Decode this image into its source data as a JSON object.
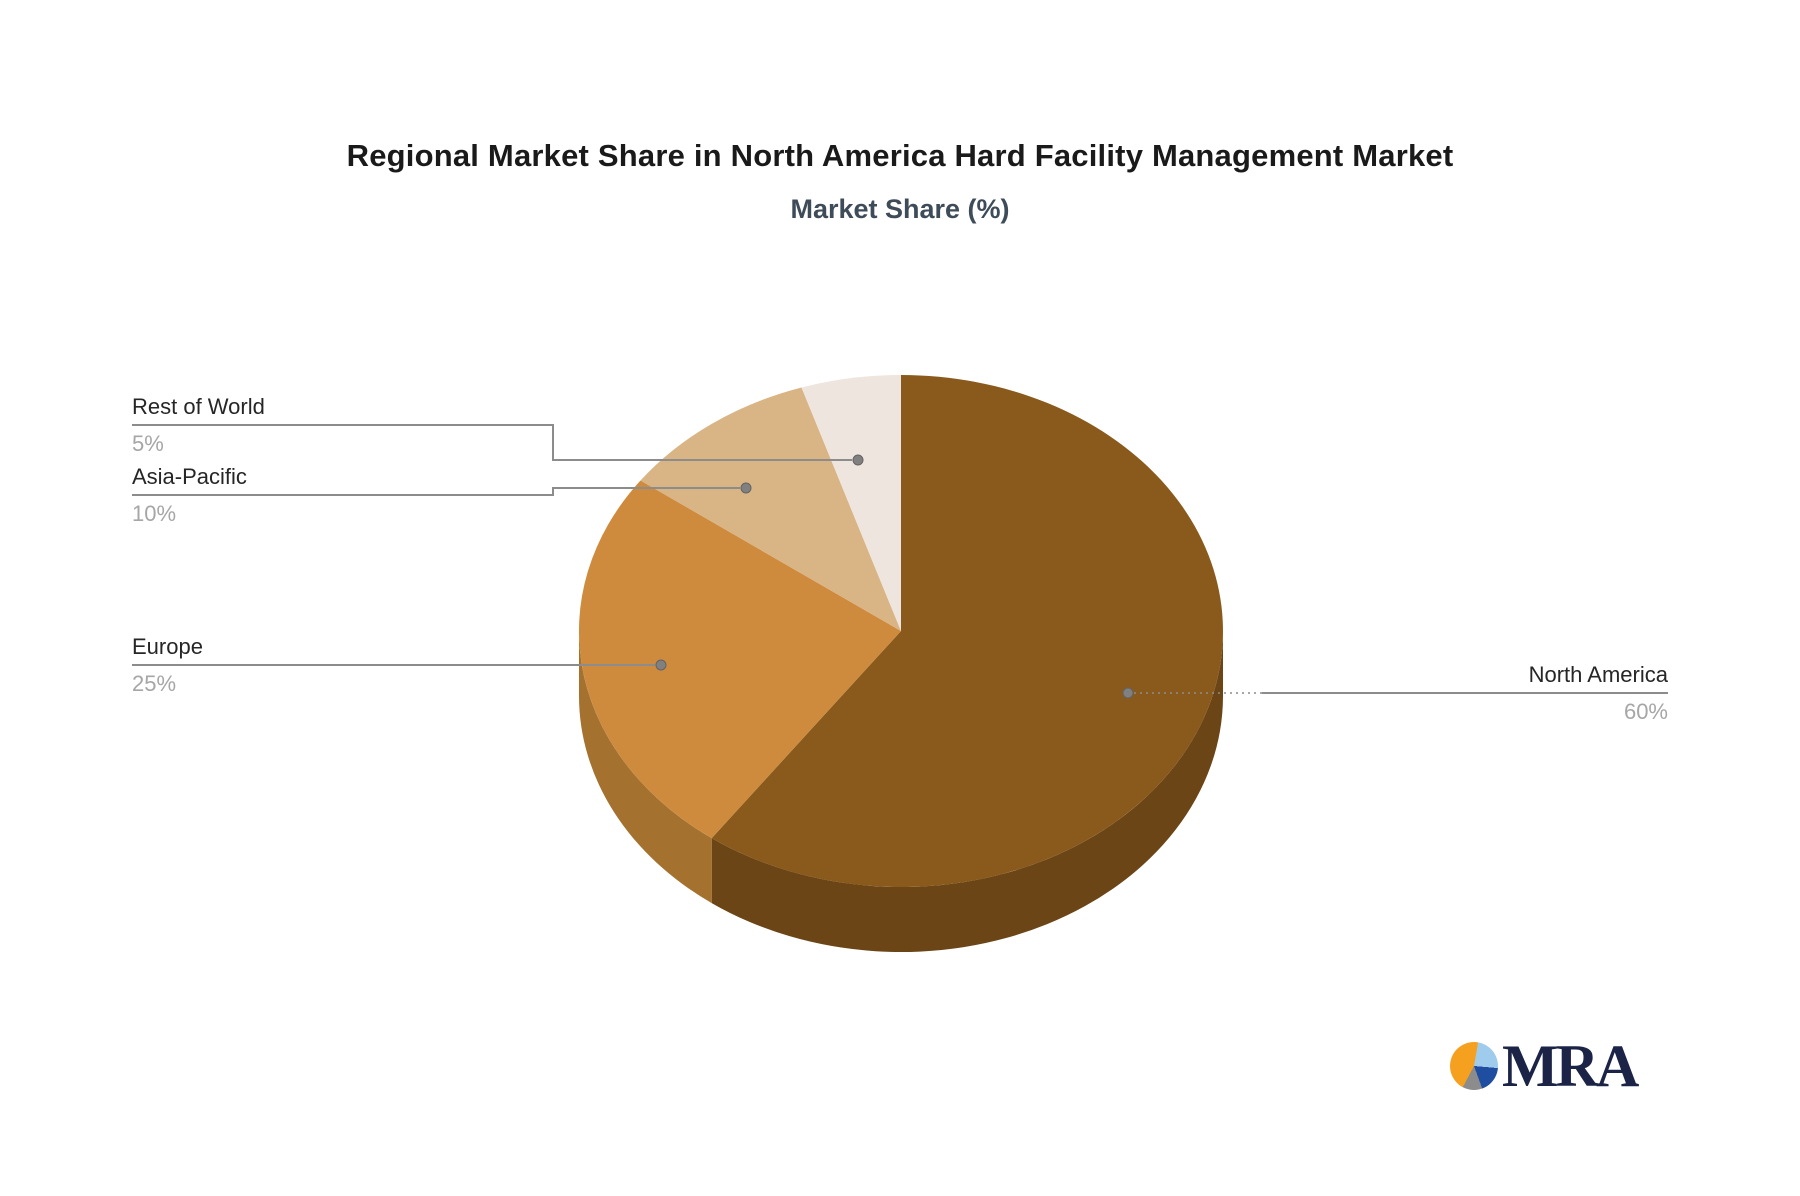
{
  "header": {
    "title": "Regional Market Share in North America Hard Facility Management Market",
    "subtitle": "Market Share (%)"
  },
  "chart_data": {
    "type": "pie",
    "title": "Regional Market Share in North America Hard Facility Management Market",
    "subtitle": "Market Share (%)",
    "unit": "%",
    "effect": "3d",
    "start_angle_deg": 0,
    "direction": "clockwise",
    "legend_position": "callout-labels",
    "slices": [
      {
        "label": "North America",
        "value": 60,
        "value_text": "60%",
        "color": "#8A5A1C",
        "side_color": "#6B4516"
      },
      {
        "label": "Europe",
        "value": 25,
        "value_text": "25%",
        "color": "#CE8B3E",
        "side_color": "#A4722E"
      },
      {
        "label": "Asia-Pacific",
        "value": 10,
        "value_text": "10%",
        "color": "#D9B485",
        "side_color": "#B5945F"
      },
      {
        "label": "Rest of World",
        "value": 5,
        "value_text": "5%",
        "color": "#EFE5DF",
        "side_color": "#C9BBB2"
      }
    ]
  },
  "logo": {
    "text": "MRA"
  },
  "colors": {
    "leader_line": "#8C8C8C",
    "callout_dot": "#808080",
    "label_text": "#262626",
    "value_text": "#A6A6A6",
    "title_text": "#1A1A1A",
    "subtitle_text": "#3E4C59",
    "logo_text": "#1B2446",
    "logo_orange": "#F5A11F",
    "logo_lightblue": "#9FCBEC",
    "logo_darkblue": "#1F4DA0",
    "logo_grey": "#8C8C8C"
  }
}
